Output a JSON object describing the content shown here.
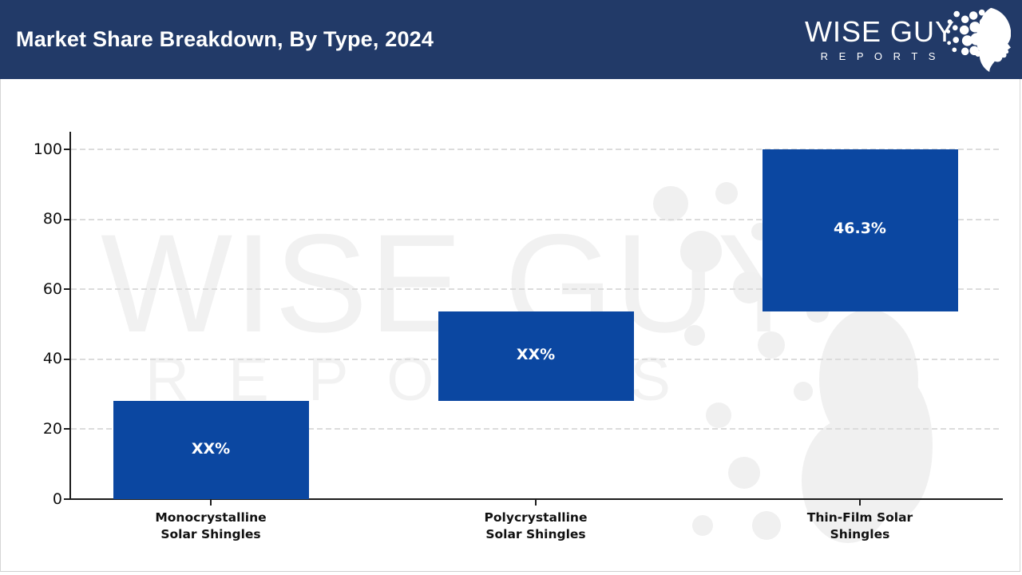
{
  "header": {
    "title": "Market Share Breakdown, By Type, 2024",
    "bg_color": "#223A68",
    "brand": {
      "name": "WISE GUY",
      "sub": "R E P O R T S",
      "face_icon": "dotted-head-profile"
    }
  },
  "watermark": {
    "line1": "WISE GUY",
    "line2": "R E P O R T S"
  },
  "chart_data": {
    "type": "bar",
    "subtype": "floating-segment waterfall (cumulative market share breakdown)",
    "title": "Market Share Breakdown, By Type, 2024",
    "categories": [
      "Monocrystalline Solar Shingles",
      "Polycrystalline Solar Shingles",
      "Thin-Film Solar Shingles"
    ],
    "category_lines": [
      [
        "Monocrystalline",
        "Solar Shingles"
      ],
      [
        "Polycrystalline",
        "Solar Shingles"
      ],
      [
        "Thin-Film Solar",
        "Shingles"
      ]
    ],
    "segments": [
      {
        "start": 0,
        "end": 28
      },
      {
        "start": 28,
        "end": 53.7
      },
      {
        "start": 53.7,
        "end": 100
      }
    ],
    "bar_labels": [
      "XX%",
      "XX%",
      "46.3%"
    ],
    "bar_color": "#0B47A1",
    "bar_label_color": "#FFFFFF",
    "ylim": [
      0,
      100
    ],
    "yticks": [
      0,
      20,
      40,
      60,
      80,
      100
    ],
    "grid": {
      "axis": "y",
      "style": "dashed",
      "color": "#DCDCDC"
    },
    "xlabel": "",
    "ylabel": "",
    "legend": "none"
  }
}
